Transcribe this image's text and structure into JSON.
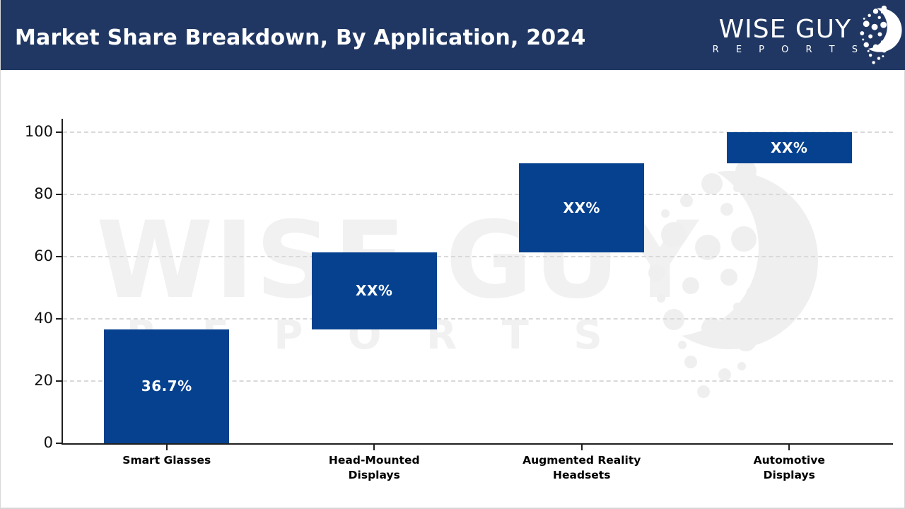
{
  "header": {
    "title": "Market Share Breakdown, By Application, 2024",
    "logo": {
      "name": "WISE GUY",
      "sub": "R E P O R T S"
    }
  },
  "watermark": {
    "big": "WISE GUY",
    "sub": "R E P O R T S"
  },
  "colors": {
    "header_bg": "#203763",
    "bar": "#05418f",
    "bar_label": "#ffffff",
    "grid": "#d9d9d9",
    "axis": "#1f1f1f",
    "tick_label": "#111111",
    "watermark": "#f1f1f1",
    "page_border": "#d8d8d8"
  },
  "chart_data": {
    "type": "bar",
    "subtype": "waterfall",
    "title": "Market Share Breakdown, By Application, 2024",
    "categories": [
      "Smart Glasses",
      "Head-Mounted Displays",
      "Augmented Reality Headsets",
      "Automotive Displays"
    ],
    "category_lines": [
      [
        "Smart Glasses"
      ],
      [
        "Head-Mounted",
        "Displays"
      ],
      [
        "Augmented Reality",
        "Headsets"
      ],
      [
        "Automotive",
        "Displays"
      ]
    ],
    "segments": [
      {
        "category": "Smart Glasses",
        "start": 0,
        "end": 36.7,
        "value": 36.7,
        "label": "36.7%"
      },
      {
        "category": "Head-Mounted Displays",
        "start": 36.7,
        "end": 61.4,
        "value": 24.7,
        "label": "XX%"
      },
      {
        "category": "Augmented Reality Headsets",
        "start": 61.4,
        "end": 90.0,
        "value": 28.6,
        "label": "XX%"
      },
      {
        "category": "Automotive Displays",
        "start": 90.0,
        "end": 100.0,
        "value": 10.0,
        "label": "XX%"
      }
    ],
    "ylim": [
      0,
      100
    ],
    "yticks": [
      0,
      20,
      40,
      60,
      80,
      100
    ],
    "xlabel": "",
    "ylabel": "",
    "grid": "horizontal-dashed",
    "legend": "none"
  }
}
